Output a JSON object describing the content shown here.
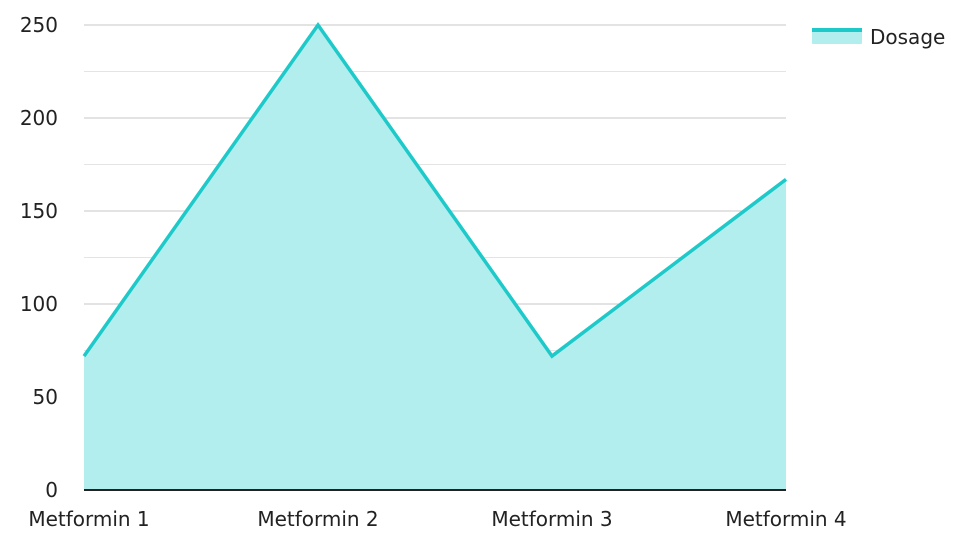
{
  "chart_data": {
    "type": "area",
    "categories": [
      "Metformin 1",
      "Metformin 2",
      "Metformin 3",
      "Metformin 4"
    ],
    "series": [
      {
        "name": "Dosage",
        "values": [
          72,
          250,
          72,
          167
        ]
      }
    ],
    "ylim": [
      0,
      250
    ],
    "yticks": [
      0,
      50,
      100,
      150,
      200,
      250
    ],
    "grid": true,
    "minor_grid": true,
    "legend_position": "top-right"
  },
  "colors": {
    "line": "#1ec9c9",
    "fill": "#b2eeee",
    "grid_major": "#c7c7c7",
    "grid_minor": "#e4e4e4",
    "axis": "#222222",
    "text": "#222222"
  }
}
